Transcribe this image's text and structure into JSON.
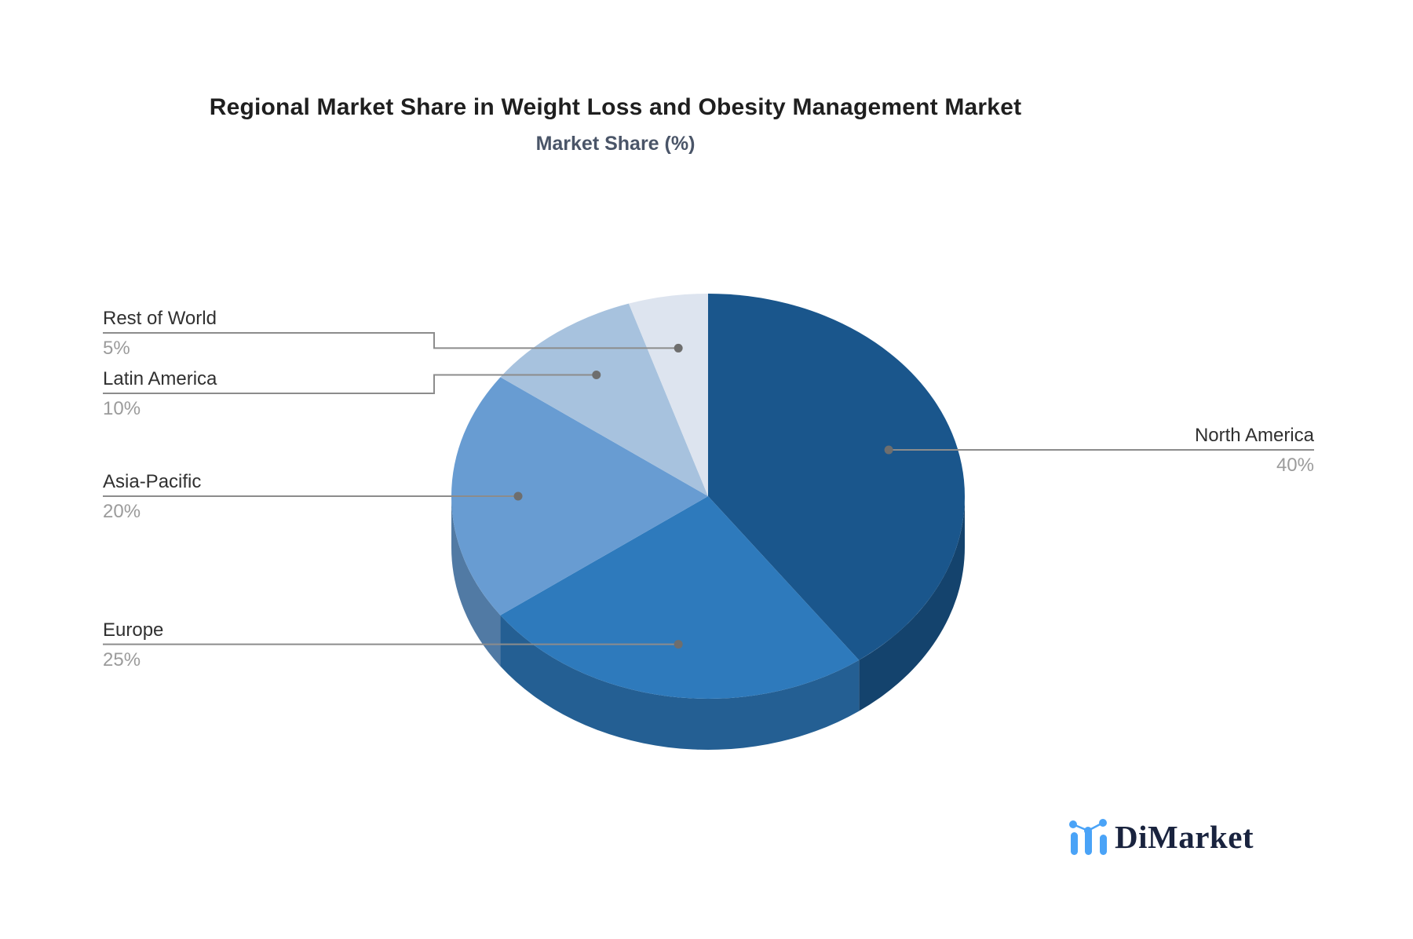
{
  "title": "Regional Market Share in Weight Loss and Obesity Management Market",
  "subtitle": "Market Share (%)",
  "logo": {
    "icon": "bar-chart-icon",
    "text": "DiMarket",
    "icon_color": "#4AA3F7",
    "text_color": "#19233E"
  },
  "chart_data": {
    "type": "pie",
    "style": "3d",
    "title": "Regional Market Share in Weight Loss and Obesity Management Market",
    "subtitle": "Market Share (%)",
    "unit": "%",
    "start_angle_deg": 0,
    "direction": "clockwise",
    "legend_position": "callout-labels",
    "background": "#FFFFFF",
    "leader_line_color": "#8C8C8C",
    "label_color": "#303030",
    "value_color": "#9B9B9B",
    "slices": [
      {
        "label": "North America",
        "value": 40,
        "pct": "40%",
        "color": "#1A568C"
      },
      {
        "label": "Europe",
        "value": 25,
        "pct": "25%",
        "color": "#2E7ABC"
      },
      {
        "label": "Asia-Pacific",
        "value": 20,
        "pct": "20%",
        "color": "#689CD2"
      },
      {
        "label": "Latin America",
        "value": 10,
        "pct": "10%",
        "color": "#A7C2DE"
      },
      {
        "label": "Rest of World",
        "value": 5,
        "pct": "5%",
        "color": "#DDE4EF"
      }
    ]
  }
}
